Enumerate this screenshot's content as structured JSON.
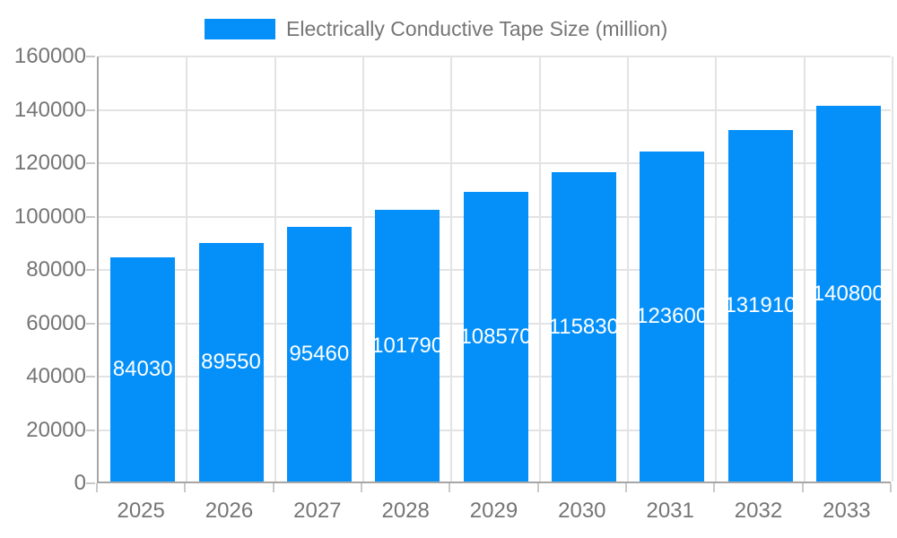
{
  "legend": {
    "label": "Electrically Conductive Tape Size (million)"
  },
  "colors": {
    "bar": "#0590F9",
    "axis": "#A6A6A6",
    "grid": "#E3E3E3",
    "tick": "#C9C9C9",
    "text": "#757575",
    "value_label": "#FFFFFF"
  },
  "chart_data": {
    "type": "bar",
    "title": "",
    "legend_entries": [
      "Electrically Conductive Tape Size (million)"
    ],
    "legend_position": "top",
    "categories": [
      "2025",
      "2026",
      "2027",
      "2028",
      "2029",
      "2030",
      "2031",
      "2032",
      "2033"
    ],
    "series": [
      {
        "name": "Electrically Conductive Tape Size (million)",
        "values": [
          84030,
          89550,
          95460,
          101790,
          108570,
          115830,
          123600,
          131910,
          140800
        ]
      }
    ],
    "value_labels": [
      "84030",
      "89550",
      "95460",
      "101790",
      "108570",
      "115830",
      "123600",
      "131910",
      "140800"
    ],
    "xlabel": "",
    "ylabel": "",
    "ylim": [
      0,
      160000
    ],
    "yticks": [
      0,
      20000,
      40000,
      60000,
      80000,
      100000,
      120000,
      140000,
      160000
    ],
    "grid": true
  }
}
